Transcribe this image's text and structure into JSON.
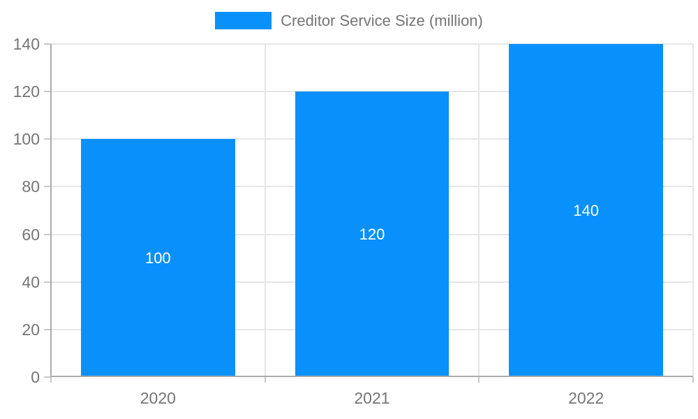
{
  "chart_data": {
    "type": "bar",
    "title": "",
    "legend": "Creditor Service Size (million)",
    "legend_position": "top",
    "categories": [
      "2020",
      "2021",
      "2022"
    ],
    "series": [
      {
        "name": "Creditor Service Size (million)",
        "values": [
          100,
          120,
          140
        ]
      }
    ],
    "value_labels": [
      "100",
      "120",
      "140"
    ],
    "xlabel": "",
    "ylabel": "",
    "ylim": [
      0,
      140
    ],
    "yticks": [
      0,
      20,
      40,
      60,
      80,
      100,
      120,
      140
    ],
    "grid": true
  },
  "colors": {
    "bar": "#0a90fa",
    "gridline": "#e6e6e6",
    "axis": "#ababab",
    "tick": "#c9c9c9",
    "axis_label": "#757575",
    "legend_text": "#757575",
    "value_label": "#ffffff",
    "background": "#ffffff"
  }
}
